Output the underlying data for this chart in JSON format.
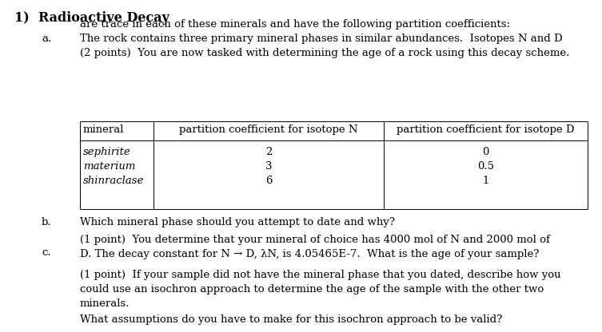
{
  "title": "1)  Radioactive Decay",
  "section_a_label": "a.",
  "section_b_label": "b.",
  "section_c_label": "c.",
  "para_a_lines": [
    "(2 points)  You are now tasked with determining the age of a rock using this decay scheme.",
    "The rock contains three primary mineral phases in similar abundances.  Isotopes N and D",
    "are trace in each of these minerals and have the following partition coefficients:"
  ],
  "table_headers": [
    "mineral",
    "partition coefficient for isotope N",
    "partition coefficient for isotope D"
  ],
  "table_rows": [
    [
      "sephirite",
      "2",
      "0"
    ],
    [
      "materium",
      "3",
      "0.5"
    ],
    [
      "shinraclase",
      "6",
      "1"
    ]
  ],
  "para_b": "Which mineral phase should you attempt to date and why?",
  "para_c1_lines": [
    "(1 point)  You determine that your mineral of choice has 4000 mol of N and 2000 mol of",
    "D. The decay constant for N → D, λN, is 4.05465E-7.  What is the age of your sample?"
  ],
  "para_c2_lines": [
    "(1 point)  If your sample did not have the mineral phase that you dated, describe how you",
    "could use an isochron approach to determine the age of the sample with the other two",
    "minerals."
  ],
  "para_c3": "What assumptions do you have to make for this isochron approach to be valid?",
  "bg_color": "#ffffff",
  "text_color": "#000000",
  "font_family": "serif",
  "fontsize": 9.5,
  "title_fontsize": 11.5
}
